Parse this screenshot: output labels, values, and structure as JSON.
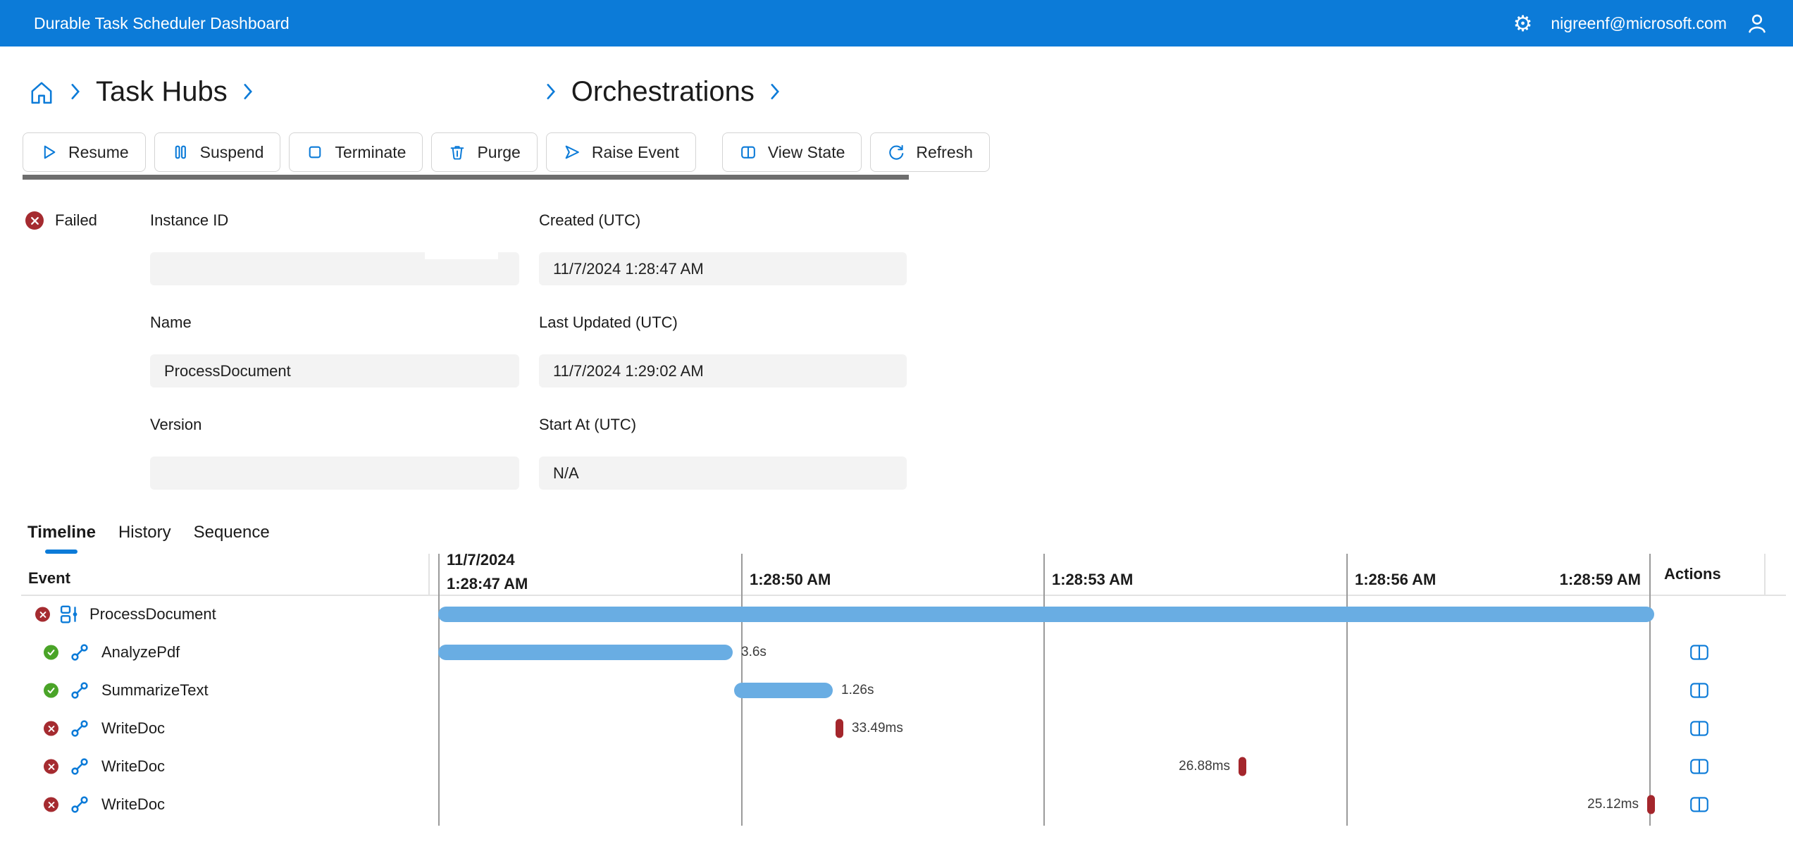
{
  "topbar": {
    "title": "Durable Task Scheduler Dashboard",
    "user_email": "nigreenf@microsoft.com",
    "icons": [
      "gear-icon",
      "person-icon"
    ]
  },
  "breadcrumb": {
    "items": [
      "Task Hubs",
      "Orchestrations"
    ]
  },
  "toolbar": {
    "buttons": [
      {
        "label": "Resume",
        "icon": "play-icon"
      },
      {
        "label": "Suspend",
        "icon": "pause-icon"
      },
      {
        "label": "Terminate",
        "icon": "stop-icon"
      },
      {
        "label": "Purge",
        "icon": "trash-icon"
      },
      {
        "label": "Raise Event",
        "icon": "send-icon"
      },
      {
        "label": "View State",
        "icon": "split-pane-icon"
      },
      {
        "label": "Refresh",
        "icon": "refresh-icon"
      }
    ]
  },
  "details": {
    "status_label": "Failed",
    "fields": [
      {
        "label": "Instance ID",
        "value": ""
      },
      {
        "label": "Created (UTC)",
        "value": "11/7/2024 1:28:47 AM"
      },
      {
        "label": "Name",
        "value": "ProcessDocument"
      },
      {
        "label": "Last Updated (UTC)",
        "value": "11/7/2024 1:29:02 AM"
      },
      {
        "label": "Version",
        "value": ""
      },
      {
        "label": "Start At (UTC)",
        "value": "N/A"
      }
    ]
  },
  "tabs": [
    {
      "label": "Timeline",
      "active": true
    },
    {
      "label": "History",
      "active": false
    },
    {
      "label": "Sequence",
      "active": false
    }
  ],
  "timeline": {
    "event_header": "Event",
    "actions_header": "Actions",
    "axis": {
      "date_line": "11/7/2024",
      "ticks": [
        {
          "label": "1:28:47 AM",
          "offset": 0
        },
        {
          "label": "1:28:50 AM",
          "offset": 430
        },
        {
          "label": "1:28:53 AM",
          "offset": 859
        },
        {
          "label": "1:28:56 AM",
          "offset": 1289
        },
        {
          "label": "1:28:59 AM",
          "offset": 1719,
          "align": "right"
        }
      ]
    },
    "rows": [
      {
        "name": "ProcessDocument",
        "status": "failed",
        "type": "orchestration",
        "bar": {
          "start": 0,
          "end": 1726,
          "color": "blue"
        },
        "duration": "",
        "duration_side": "right",
        "has_action": false
      },
      {
        "name": "AnalyzePdf",
        "status": "succeeded",
        "type": "activity",
        "bar": {
          "start": 0,
          "end": 418,
          "color": "blue"
        },
        "duration": "3.6s",
        "duration_side": "right",
        "has_action": true
      },
      {
        "name": "SummarizeText",
        "status": "succeeded",
        "type": "activity",
        "bar": {
          "start": 420,
          "end": 560,
          "color": "blue"
        },
        "duration": "1.26s",
        "duration_side": "right",
        "has_action": true
      },
      {
        "name": "WriteDoc",
        "status": "failed",
        "type": "activity",
        "bar": {
          "start": 564,
          "end": 575,
          "color": "red"
        },
        "duration": "33.49ms",
        "duration_side": "right",
        "has_action": true
      },
      {
        "name": "WriteDoc",
        "status": "failed",
        "type": "activity",
        "bar": {
          "start": 1136,
          "end": 1147,
          "color": "red"
        },
        "duration": "26.88ms",
        "duration_side": "left",
        "has_action": true
      },
      {
        "name": "WriteDoc",
        "status": "failed",
        "type": "activity",
        "bar": {
          "start": 1716,
          "end": 1727,
          "color": "red"
        },
        "duration": "25.12ms",
        "duration_side": "left",
        "has_action": true
      }
    ]
  },
  "chart_data": {
    "type": "bar",
    "orientation": "horizontal-gantt",
    "x_ticks": [
      "1:28:47 AM",
      "1:28:50 AM",
      "1:28:53 AM",
      "1:28:56 AM",
      "1:28:59 AM"
    ],
    "x_date": "11/7/2024",
    "categories": [
      "ProcessDocument",
      "AnalyzePdf",
      "SummarizeText",
      "WriteDoc",
      "WriteDoc",
      "WriteDoc"
    ],
    "durations": [
      "",
      "3.6s",
      "1.26s",
      "33.49ms",
      "26.88ms",
      "25.12ms"
    ],
    "statuses": [
      "failed",
      "succeeded",
      "succeeded",
      "failed",
      "failed",
      "failed"
    ],
    "grid": true,
    "legend": false
  },
  "colors": {
    "accent": "#0c7bd8",
    "success_green": "#4aa428",
    "error_red": "#a52b30",
    "bar_blue": "#69ade3",
    "bar_red": "#a4262c",
    "gridline": "#9a9a9a",
    "field_bg": "#f3f3f3"
  }
}
